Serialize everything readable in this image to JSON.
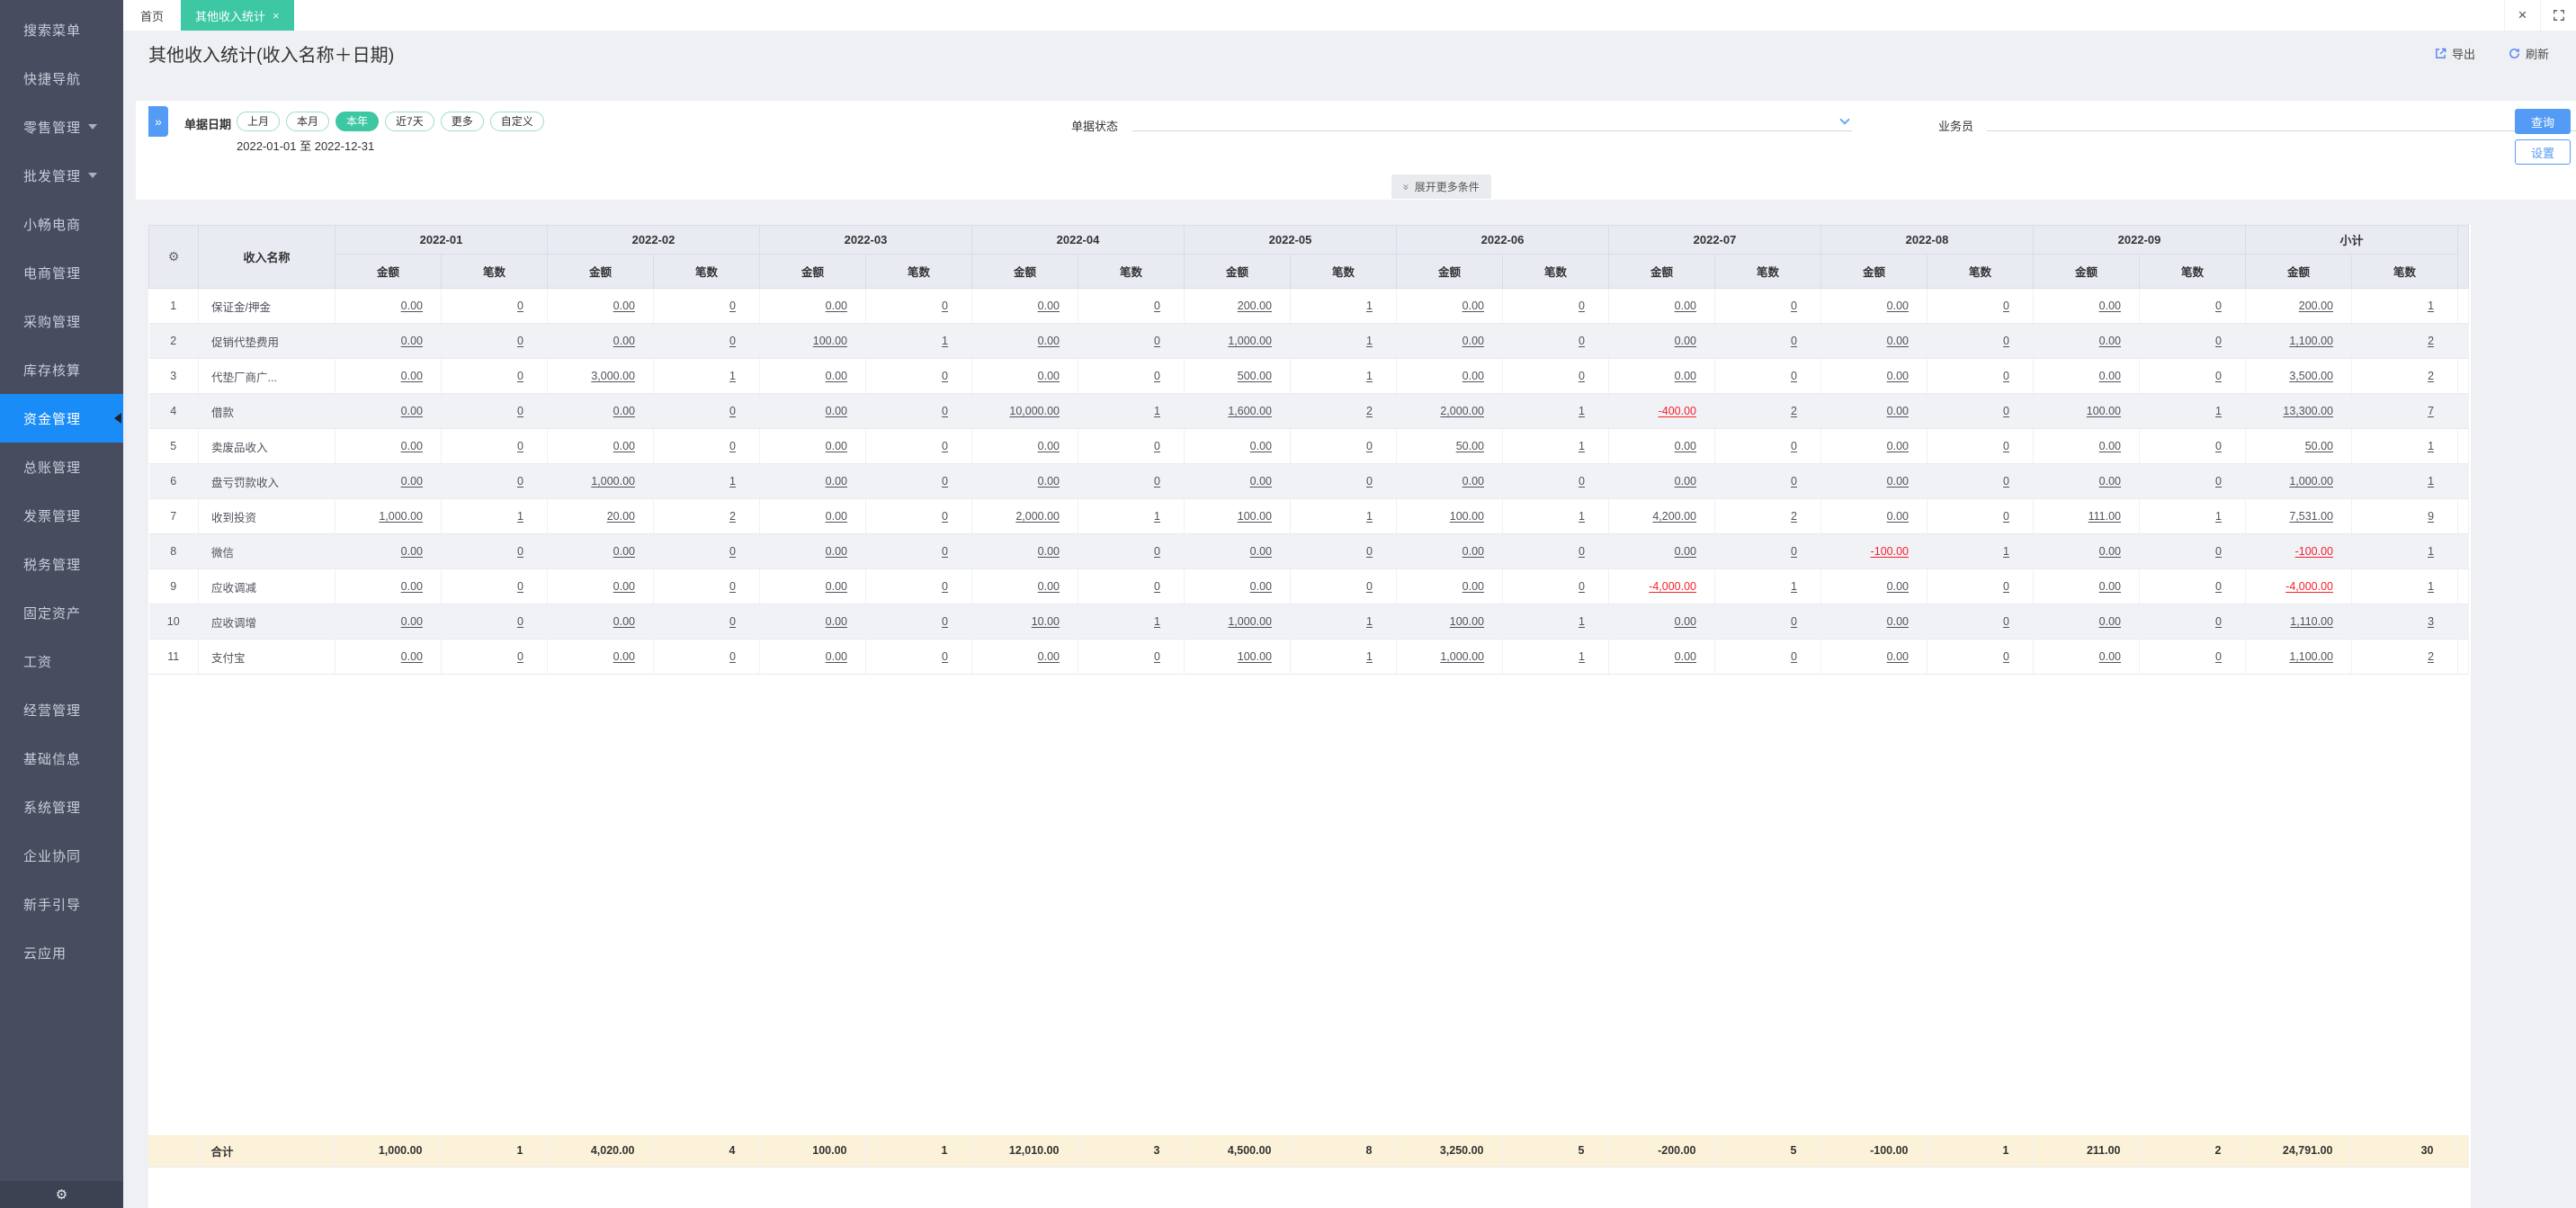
{
  "colors": {
    "accent_blue": "#549bf5",
    "active_nav_blue": "#1a8cf8",
    "brand_green": "#3dc7a3",
    "negative_red": "#f5222d",
    "total_row_bg": "#fcf2d9"
  },
  "sidebar": {
    "items": [
      {
        "label": "搜索菜单"
      },
      {
        "label": "快捷导航"
      },
      {
        "label": "零售管理",
        "arrow": true
      },
      {
        "label": "批发管理",
        "arrow": true
      },
      {
        "label": "小畅电商"
      },
      {
        "label": "电商管理"
      },
      {
        "label": "采购管理"
      },
      {
        "label": "库存核算"
      },
      {
        "label": "资金管理",
        "active": true
      },
      {
        "label": "总账管理"
      },
      {
        "label": "发票管理"
      },
      {
        "label": "税务管理"
      },
      {
        "label": "固定资产"
      },
      {
        "label": "工资"
      },
      {
        "label": "经营管理"
      },
      {
        "label": "基础信息"
      },
      {
        "label": "系统管理"
      },
      {
        "label": "企业协同"
      },
      {
        "label": "新手引导"
      },
      {
        "label": "云应用"
      }
    ]
  },
  "tabs": {
    "home": "首页",
    "active": "其他收入统计",
    "close": "×"
  },
  "header": {
    "title": "其他收入统计(收入名称＋日期)",
    "export_label": "导出",
    "refresh_label": "刷新"
  },
  "filters": {
    "date_label": "单据日期",
    "date_pills": [
      "上月",
      "本月",
      "本年",
      "近7天",
      "更多",
      "自定义"
    ],
    "date_selected": "本年",
    "date_range": "2022-01-01 至 2022-12-31",
    "status_label": "单据状态",
    "salesman_label": "业务员",
    "salesman_more": "⋯",
    "expand_more_label": "展开更多条件",
    "query_label": "查询",
    "settings_label": "设置"
  },
  "table": {
    "name_header": "收入名称",
    "amount_label": "金额",
    "count_label": "笔数",
    "months": [
      "2022-01",
      "2022-02",
      "2022-03",
      "2022-04",
      "2022-05",
      "2022-06",
      "2022-07",
      "2022-08",
      "2022-09",
      "小计"
    ],
    "rows": [
      {
        "no": "1",
        "name": "保证金/押金",
        "cells": [
          [
            "0.00",
            "0"
          ],
          [
            "0.00",
            "0"
          ],
          [
            "0.00",
            "0"
          ],
          [
            "0.00",
            "0"
          ],
          [
            "200.00",
            "1"
          ],
          [
            "0.00",
            "0"
          ],
          [
            "0.00",
            "0"
          ],
          [
            "0.00",
            "0"
          ],
          [
            "0.00",
            "0"
          ],
          [
            "200.00",
            "1"
          ]
        ]
      },
      {
        "no": "2",
        "name": "促销代垫费用",
        "cells": [
          [
            "0.00",
            "0"
          ],
          [
            "0.00",
            "0"
          ],
          [
            "100.00",
            "1"
          ],
          [
            "0.00",
            "0"
          ],
          [
            "1,000.00",
            "1"
          ],
          [
            "0.00",
            "0"
          ],
          [
            "0.00",
            "0"
          ],
          [
            "0.00",
            "0"
          ],
          [
            "0.00",
            "0"
          ],
          [
            "1,100.00",
            "2"
          ]
        ]
      },
      {
        "no": "3",
        "name": "代垫厂商广...",
        "cells": [
          [
            "0.00",
            "0"
          ],
          [
            "3,000.00",
            "1"
          ],
          [
            "0.00",
            "0"
          ],
          [
            "0.00",
            "0"
          ],
          [
            "500.00",
            "1"
          ],
          [
            "0.00",
            "0"
          ],
          [
            "0.00",
            "0"
          ],
          [
            "0.00",
            "0"
          ],
          [
            "0.00",
            "0"
          ],
          [
            "3,500.00",
            "2"
          ]
        ]
      },
      {
        "no": "4",
        "name": "借款",
        "cells": [
          [
            "0.00",
            "0"
          ],
          [
            "0.00",
            "0"
          ],
          [
            "0.00",
            "0"
          ],
          [
            "10,000.00",
            "1"
          ],
          [
            "1,600.00",
            "2"
          ],
          [
            "2,000.00",
            "1"
          ],
          [
            "-400.00",
            "2"
          ],
          [
            "0.00",
            "0"
          ],
          [
            "100.00",
            "1"
          ],
          [
            "13,300.00",
            "7"
          ]
        ]
      },
      {
        "no": "5",
        "name": "卖废品收入",
        "cells": [
          [
            "0.00",
            "0"
          ],
          [
            "0.00",
            "0"
          ],
          [
            "0.00",
            "0"
          ],
          [
            "0.00",
            "0"
          ],
          [
            "0.00",
            "0"
          ],
          [
            "50.00",
            "1"
          ],
          [
            "0.00",
            "0"
          ],
          [
            "0.00",
            "0"
          ],
          [
            "0.00",
            "0"
          ],
          [
            "50.00",
            "1"
          ]
        ]
      },
      {
        "no": "6",
        "name": "盘亏罚款收入",
        "cells": [
          [
            "0.00",
            "0"
          ],
          [
            "1,000.00",
            "1"
          ],
          [
            "0.00",
            "0"
          ],
          [
            "0.00",
            "0"
          ],
          [
            "0.00",
            "0"
          ],
          [
            "0.00",
            "0"
          ],
          [
            "0.00",
            "0"
          ],
          [
            "0.00",
            "0"
          ],
          [
            "0.00",
            "0"
          ],
          [
            "1,000.00",
            "1"
          ]
        ]
      },
      {
        "no": "7",
        "name": "收到投资",
        "cells": [
          [
            "1,000.00",
            "1"
          ],
          [
            "20.00",
            "2"
          ],
          [
            "0.00",
            "0"
          ],
          [
            "2,000.00",
            "1"
          ],
          [
            "100.00",
            "1"
          ],
          [
            "100.00",
            "1"
          ],
          [
            "4,200.00",
            "2"
          ],
          [
            "0.00",
            "0"
          ],
          [
            "111.00",
            "1"
          ],
          [
            "7,531.00",
            "9"
          ]
        ]
      },
      {
        "no": "8",
        "name": "微信",
        "cells": [
          [
            "0.00",
            "0"
          ],
          [
            "0.00",
            "0"
          ],
          [
            "0.00",
            "0"
          ],
          [
            "0.00",
            "0"
          ],
          [
            "0.00",
            "0"
          ],
          [
            "0.00",
            "0"
          ],
          [
            "0.00",
            "0"
          ],
          [
            "-100.00",
            "1"
          ],
          [
            "0.00",
            "0"
          ],
          [
            "-100.00",
            "1"
          ]
        ]
      },
      {
        "no": "9",
        "name": "应收调减",
        "cells": [
          [
            "0.00",
            "0"
          ],
          [
            "0.00",
            "0"
          ],
          [
            "0.00",
            "0"
          ],
          [
            "0.00",
            "0"
          ],
          [
            "0.00",
            "0"
          ],
          [
            "0.00",
            "0"
          ],
          [
            "-4,000.00",
            "1"
          ],
          [
            "0.00",
            "0"
          ],
          [
            "0.00",
            "0"
          ],
          [
            "-4,000.00",
            "1"
          ]
        ]
      },
      {
        "no": "10",
        "name": "应收调增",
        "cells": [
          [
            "0.00",
            "0"
          ],
          [
            "0.00",
            "0"
          ],
          [
            "0.00",
            "0"
          ],
          [
            "10.00",
            "1"
          ],
          [
            "1,000.00",
            "1"
          ],
          [
            "100.00",
            "1"
          ],
          [
            "0.00",
            "0"
          ],
          [
            "0.00",
            "0"
          ],
          [
            "0.00",
            "0"
          ],
          [
            "1,110.00",
            "3"
          ]
        ]
      },
      {
        "no": "11",
        "name": "支付宝",
        "cells": [
          [
            "0.00",
            "0"
          ],
          [
            "0.00",
            "0"
          ],
          [
            "0.00",
            "0"
          ],
          [
            "0.00",
            "0"
          ],
          [
            "100.00",
            "1"
          ],
          [
            "1,000.00",
            "1"
          ],
          [
            "0.00",
            "0"
          ],
          [
            "0.00",
            "0"
          ],
          [
            "0.00",
            "0"
          ],
          [
            "1,100.00",
            "2"
          ]
        ]
      }
    ],
    "total_label": "合计",
    "totals": [
      [
        "1,000.00",
        "1"
      ],
      [
        "4,020.00",
        "4"
      ],
      [
        "100.00",
        "1"
      ],
      [
        "12,010.00",
        "3"
      ],
      [
        "4,500.00",
        "8"
      ],
      [
        "3,250.00",
        "5"
      ],
      [
        "-200.00",
        "5"
      ],
      [
        "-100.00",
        "1"
      ],
      [
        "211.00",
        "2"
      ],
      [
        "24,791.00",
        "30"
      ]
    ]
  }
}
